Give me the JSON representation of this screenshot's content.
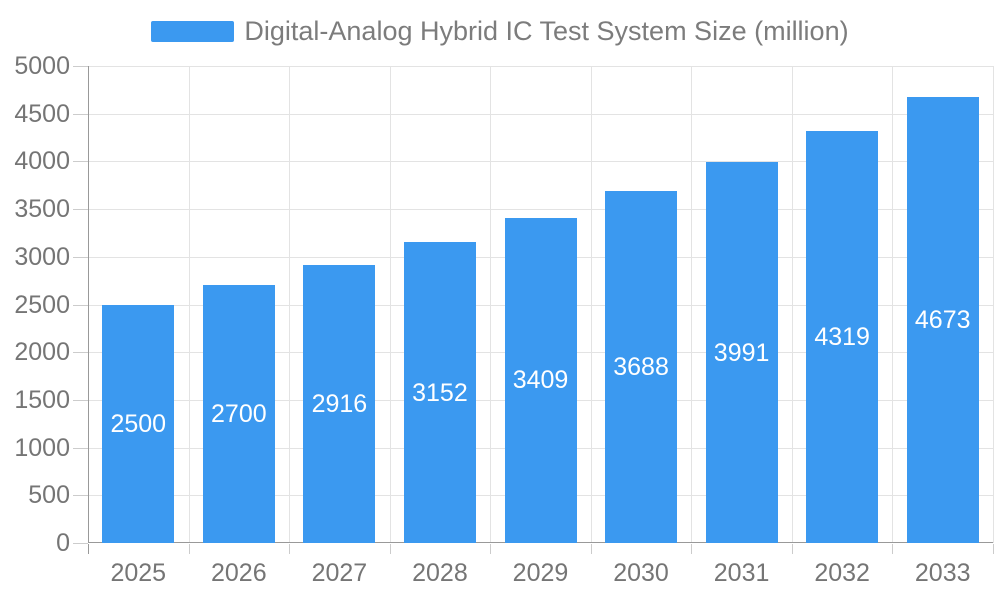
{
  "chart_data": {
    "type": "bar",
    "title": "Digital-Analog Hybrid IC Test System Size (million)",
    "categories": [
      "2025",
      "2026",
      "2027",
      "2028",
      "2029",
      "2030",
      "2031",
      "2032",
      "2033"
    ],
    "values": [
      2500,
      2700,
      2916,
      3152,
      3409,
      3688,
      3991,
      4319,
      4673
    ],
    "xlabel": "",
    "ylabel": "",
    "ylim": [
      0,
      5000
    ],
    "ytick_step": 500,
    "grid": true,
    "legend_position": "top",
    "value_labels": "inside-center",
    "colors": {
      "bar": "#3b99f0",
      "value_text": "#ffffff",
      "axis_line": "#999999",
      "axis_text": "#757575",
      "legend_text": "#7c7c7c",
      "gridline": "#e3e3e3",
      "tick": "#cccccc",
      "background": "#ffffff"
    }
  }
}
